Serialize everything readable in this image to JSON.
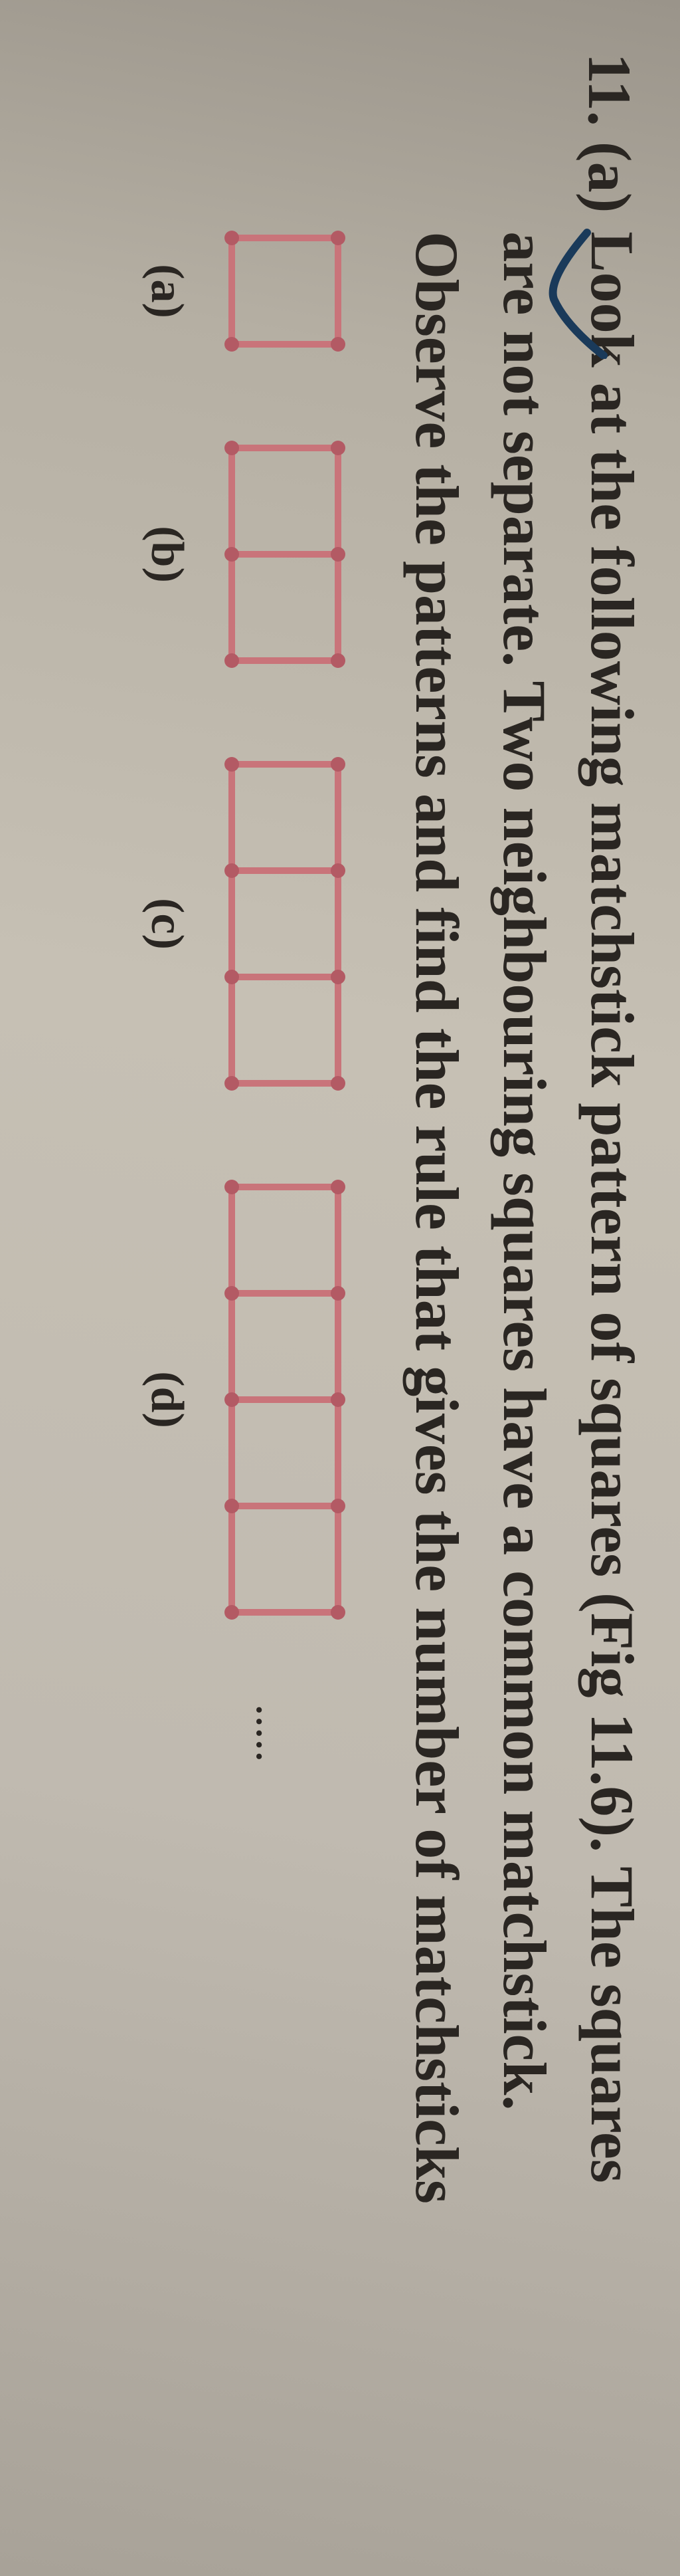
{
  "question": {
    "number": "11.",
    "part": "(a)",
    "lines": [
      "Look at the following matchstick pattern of squares (Fig 11.6). The squares",
      "are not separate. Two neighbouring squares have a common matchstick.",
      "Observe the patterns and find the rule that gives the number of matchsticks"
    ]
  },
  "style": {
    "stick_color": "#c9747a",
    "stick_head_color": "#b35a64",
    "stick_width": 10,
    "head_radius": 11,
    "cell_size": 160
  },
  "figures": [
    {
      "label": "(a)",
      "squares": 1
    },
    {
      "label": "(b)",
      "squares": 2
    },
    {
      "label": "(c)",
      "squares": 3
    },
    {
      "label": "(d)",
      "squares": 4
    }
  ],
  "trailing_dots": "....."
}
